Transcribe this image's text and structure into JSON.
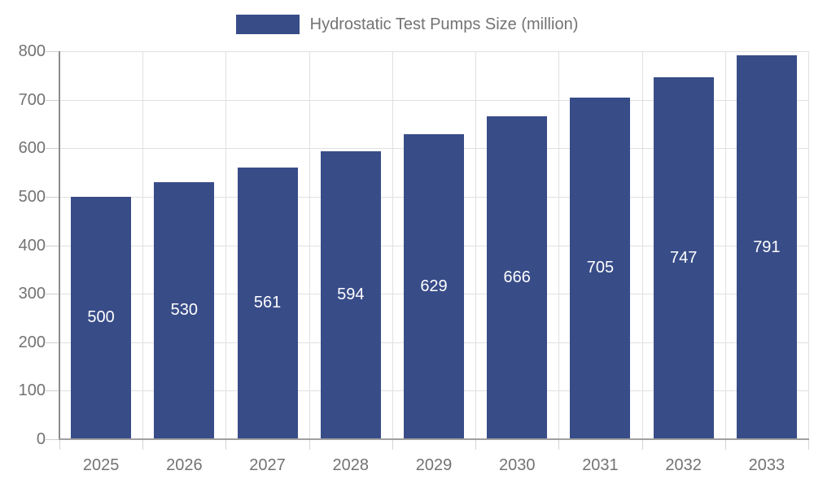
{
  "legend": {
    "label": "Hydrostatic Test Pumps Size (million)",
    "swatch_color": "#384c88"
  },
  "chart_data": {
    "type": "bar",
    "title": "Hydrostatic Test Pumps Size (million)",
    "series_name": "Hydrostatic Test Pumps Size (million)",
    "categories": [
      "2025",
      "2026",
      "2027",
      "2028",
      "2029",
      "2030",
      "2031",
      "2032",
      "2033"
    ],
    "values": [
      500,
      530,
      561,
      594,
      629,
      666,
      705,
      747,
      791
    ],
    "xlabel": "",
    "ylabel": "",
    "ylim": [
      0,
      800
    ],
    "ytick_step": 100,
    "yticks": [
      0,
      100,
      200,
      300,
      400,
      500,
      600,
      700,
      800
    ],
    "grid": true,
    "legend_position": "top",
    "bar_color": "#384c88",
    "value_label_color": "#ffffff",
    "axis_text_color": "#737373",
    "gridline_color": "#e0e0e0",
    "value_labels_shown": true,
    "value_label_position": "center-of-bar"
  }
}
